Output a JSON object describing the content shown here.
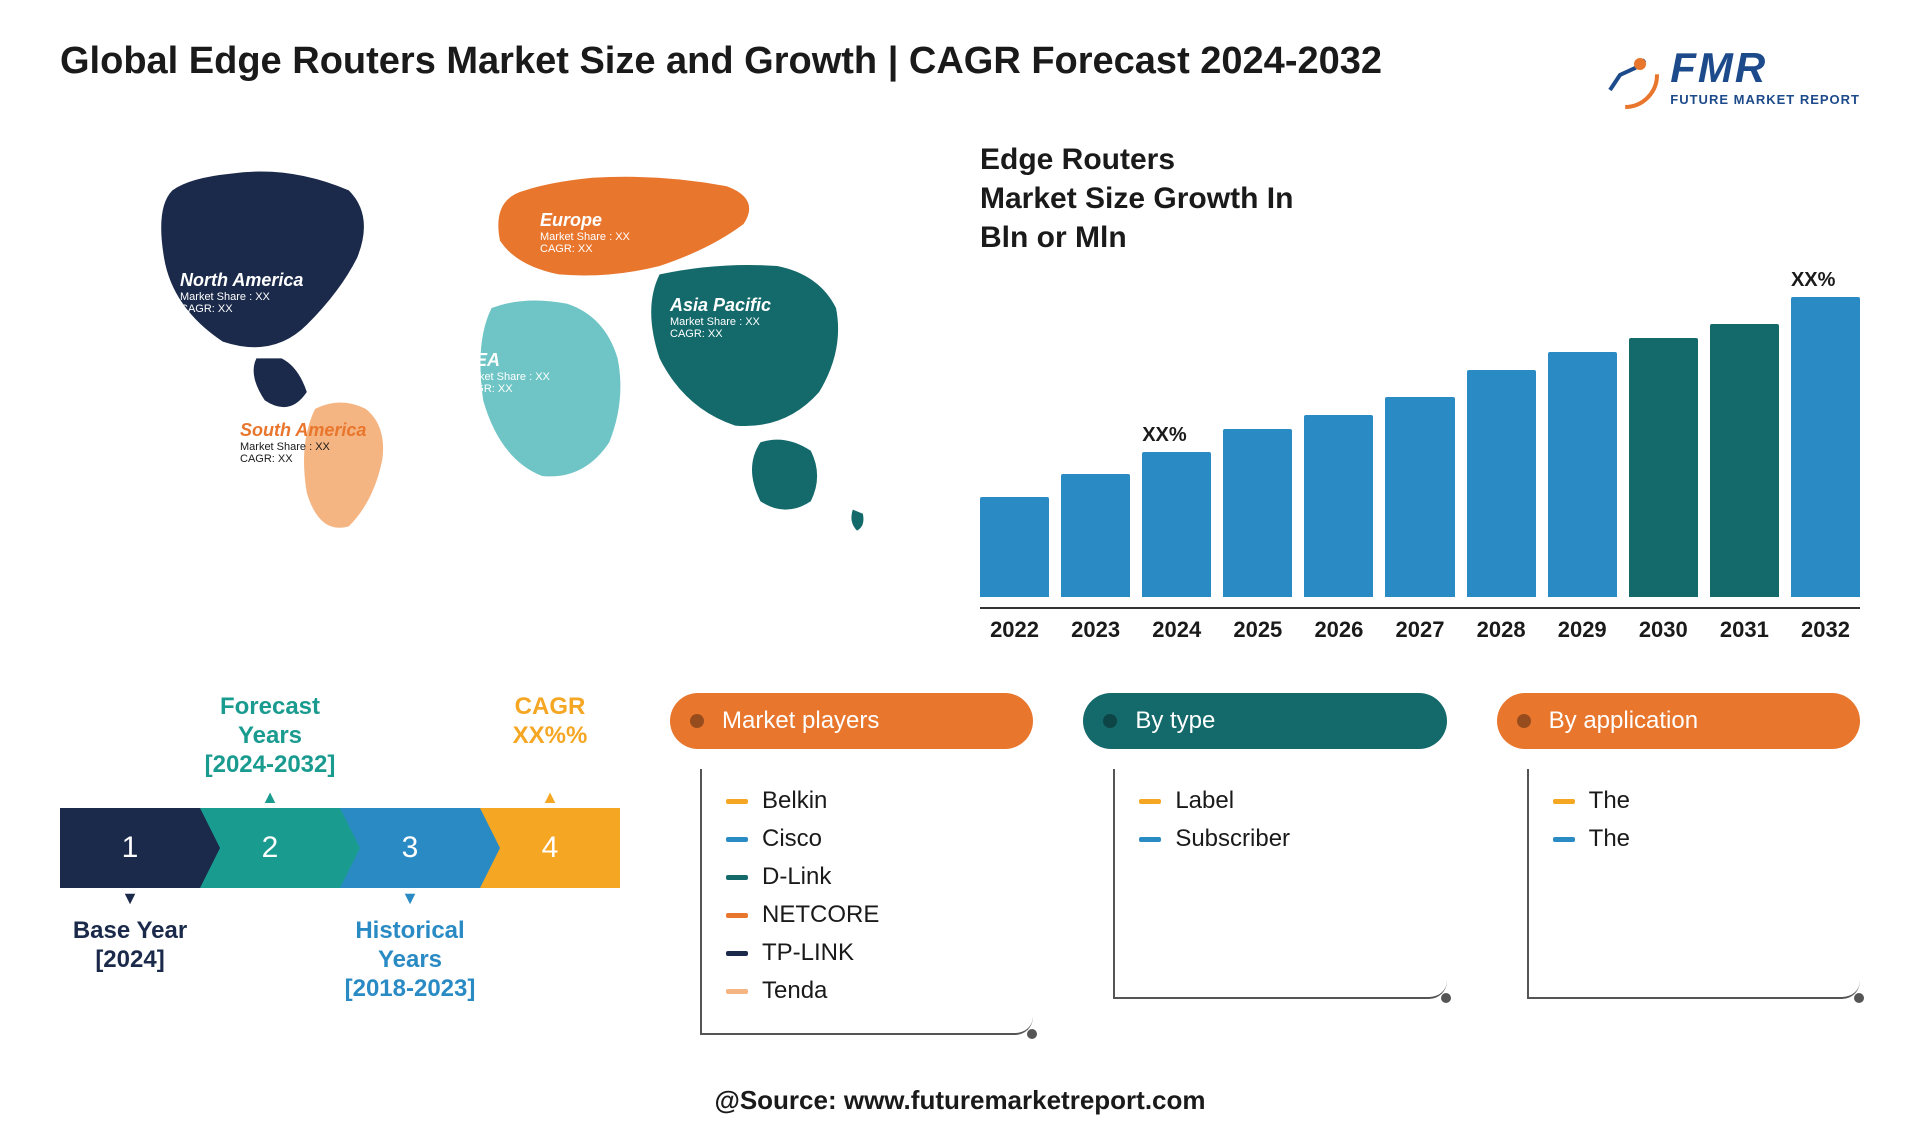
{
  "title": "Global Edge Routers Market Size and Growth | CAGR Forecast 2024-2032",
  "logo": {
    "main": "FMR",
    "sub": "FUTURE MARKET REPORT"
  },
  "map": {
    "regions": [
      {
        "name": "North America",
        "share": "Market Share : XX",
        "cagr": "CAGR: XX",
        "color": "#1b2a4a"
      },
      {
        "name": "South America",
        "share": "Market Share : XX",
        "cagr": "CAGR: XX",
        "color": "#f5b583"
      },
      {
        "name": "Europe",
        "share": "Market Share : XX",
        "cagr": "CAGR: XX",
        "color": "#e8762d"
      },
      {
        "name": "MEA",
        "share": "Market Share : XX",
        "cagr": "CAGR: XX",
        "color": "#6fc5c5"
      },
      {
        "name": "Asia Pacific",
        "share": "Market Share : XX",
        "cagr": "CAGR: XX",
        "color": "#14696b"
      }
    ]
  },
  "bar_chart": {
    "title": "Edge Routers\nMarket Size Growth In\nBln or Mln",
    "years": [
      "2022",
      "2023",
      "2024",
      "2025",
      "2026",
      "2027",
      "2028",
      "2029",
      "2030",
      "2031",
      "2032"
    ],
    "values": [
      110,
      135,
      160,
      185,
      200,
      220,
      250,
      270,
      285,
      300,
      330
    ],
    "ymax": 330,
    "colors": [
      "#2a8bc4",
      "#2a8bc4",
      "#2a8bc4",
      "#2a8bc4",
      "#2a8bc4",
      "#2a8bc4",
      "#2a8bc4",
      "#2a8bc4",
      "#14696b",
      "#14696b",
      "#2a8bc4"
    ],
    "annotations": {
      "2": "XX%",
      "10": "XX%"
    }
  },
  "timeline": {
    "top": [
      {
        "text": "",
        "color": ""
      },
      {
        "text": "Forecast Years\n[2024-2032]",
        "color": "#1a9b8f"
      },
      {
        "text": "",
        "color": ""
      },
      {
        "text": "CAGR\nXX%%",
        "color": "#f5a623"
      }
    ],
    "segments": [
      {
        "num": "1",
        "bg": "#1b2a4a"
      },
      {
        "num": "2",
        "bg": "#1a9b8f"
      },
      {
        "num": "3",
        "bg": "#2a8bc4"
      },
      {
        "num": "4",
        "bg": "#f5a623"
      }
    ],
    "bottom": [
      {
        "text": "Base Year\n[2024]",
        "color": "#1b2a4a"
      },
      {
        "text": "",
        "color": ""
      },
      {
        "text": "Historical Years\n[2018-2023]",
        "color": "#2a8bc4"
      },
      {
        "text": "",
        "color": ""
      }
    ]
  },
  "pills": [
    {
      "title": "Market players",
      "bg": "#e8762d",
      "items": [
        {
          "label": "Belkin",
          "color": "#f5a623"
        },
        {
          "label": "Cisco",
          "color": "#2a8bc4"
        },
        {
          "label": "D-Link",
          "color": "#14696b"
        },
        {
          "label": "NETCORE",
          "color": "#e8762d"
        },
        {
          "label": "TP-LINK",
          "color": "#1b2a4a"
        },
        {
          "label": "Tenda",
          "color": "#f5b583"
        }
      ]
    },
    {
      "title": "By type",
      "bg": "#14696b",
      "items": [
        {
          "label": "Label",
          "color": "#f5a623"
        },
        {
          "label": "Subscriber",
          "color": "#2a8bc4"
        }
      ]
    },
    {
      "title": "By application",
      "bg": "#e8762d",
      "items": [
        {
          "label": "The",
          "color": "#f5a623"
        },
        {
          "label": "The",
          "color": "#2a8bc4"
        }
      ]
    }
  ],
  "source": "@Source: www.futuremarketreport.com"
}
